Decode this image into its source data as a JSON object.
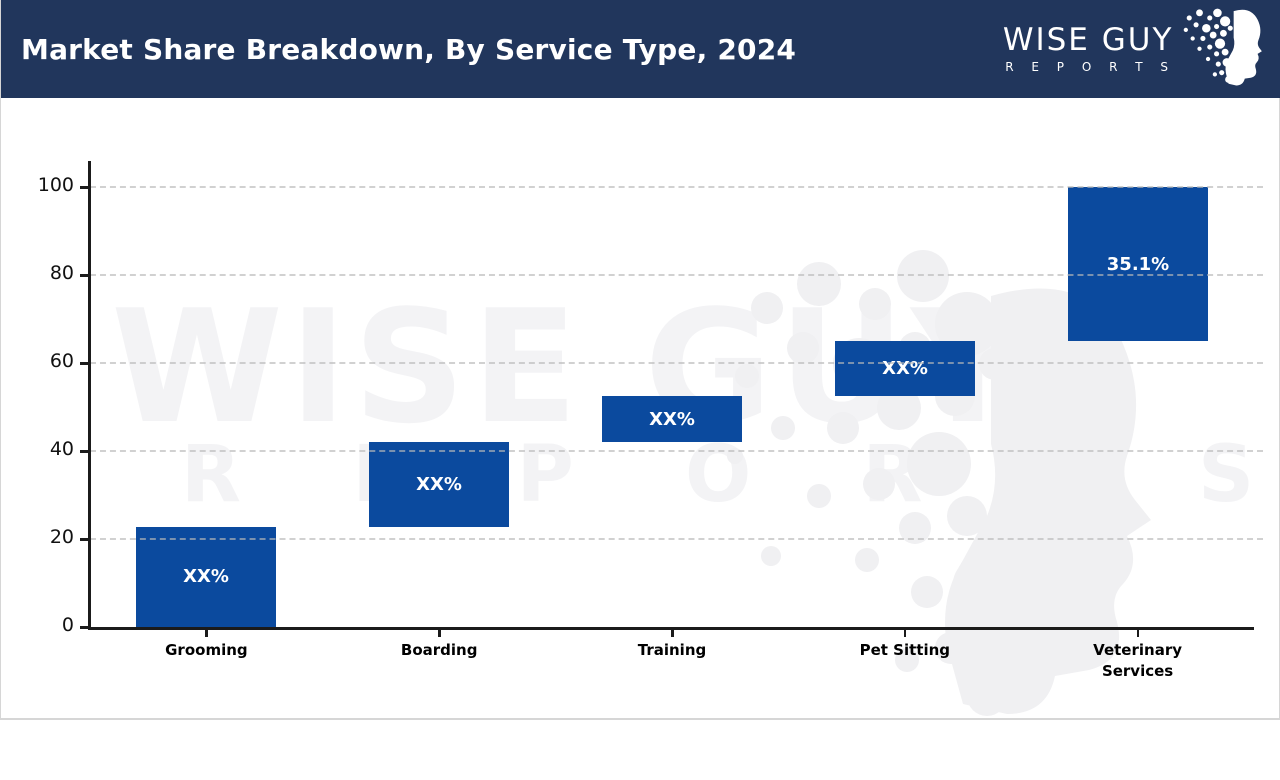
{
  "header": {
    "title": "Market Share Breakdown, By Service Type, 2024",
    "bg_color": "#21365C",
    "logo": {
      "line1": "WISE GUY",
      "line2": "R E P O R T S"
    }
  },
  "watermark": {
    "line1": "WISE GUY",
    "line2": "R E P O R T S"
  },
  "chart_data": {
    "type": "bar",
    "subtype": "waterfall",
    "title": "Market Share Breakdown, By Service Type, 2024",
    "categories": [
      "Grooming",
      "Boarding",
      "Training",
      "Pet Sitting",
      "Veterinary Services"
    ],
    "segments": [
      {
        "category": "Grooming",
        "start": 0,
        "end": 22.8,
        "label": "XX%"
      },
      {
        "category": "Boarding",
        "start": 22.8,
        "end": 42.0,
        "label": "XX%"
      },
      {
        "category": "Training",
        "start": 42.0,
        "end": 52.4,
        "label": "XX%"
      },
      {
        "category": "Pet Sitting",
        "start": 52.4,
        "end": 64.9,
        "label": "XX%"
      },
      {
        "category": "Veterinary Services",
        "start": 64.9,
        "end": 100,
        "label": "35.1%"
      }
    ],
    "y_ticks": [
      0,
      20,
      40,
      60,
      80,
      100
    ],
    "ylim": [
      0,
      105
    ],
    "xlabel": "",
    "ylabel": "",
    "legend": "none",
    "grid": "dashed-horizontal",
    "bar_color": "#0B4A9E",
    "bar_label_color": "#ffffff",
    "gridline_color": "#c9c9c9",
    "axis_color": "#1b1b1b"
  }
}
